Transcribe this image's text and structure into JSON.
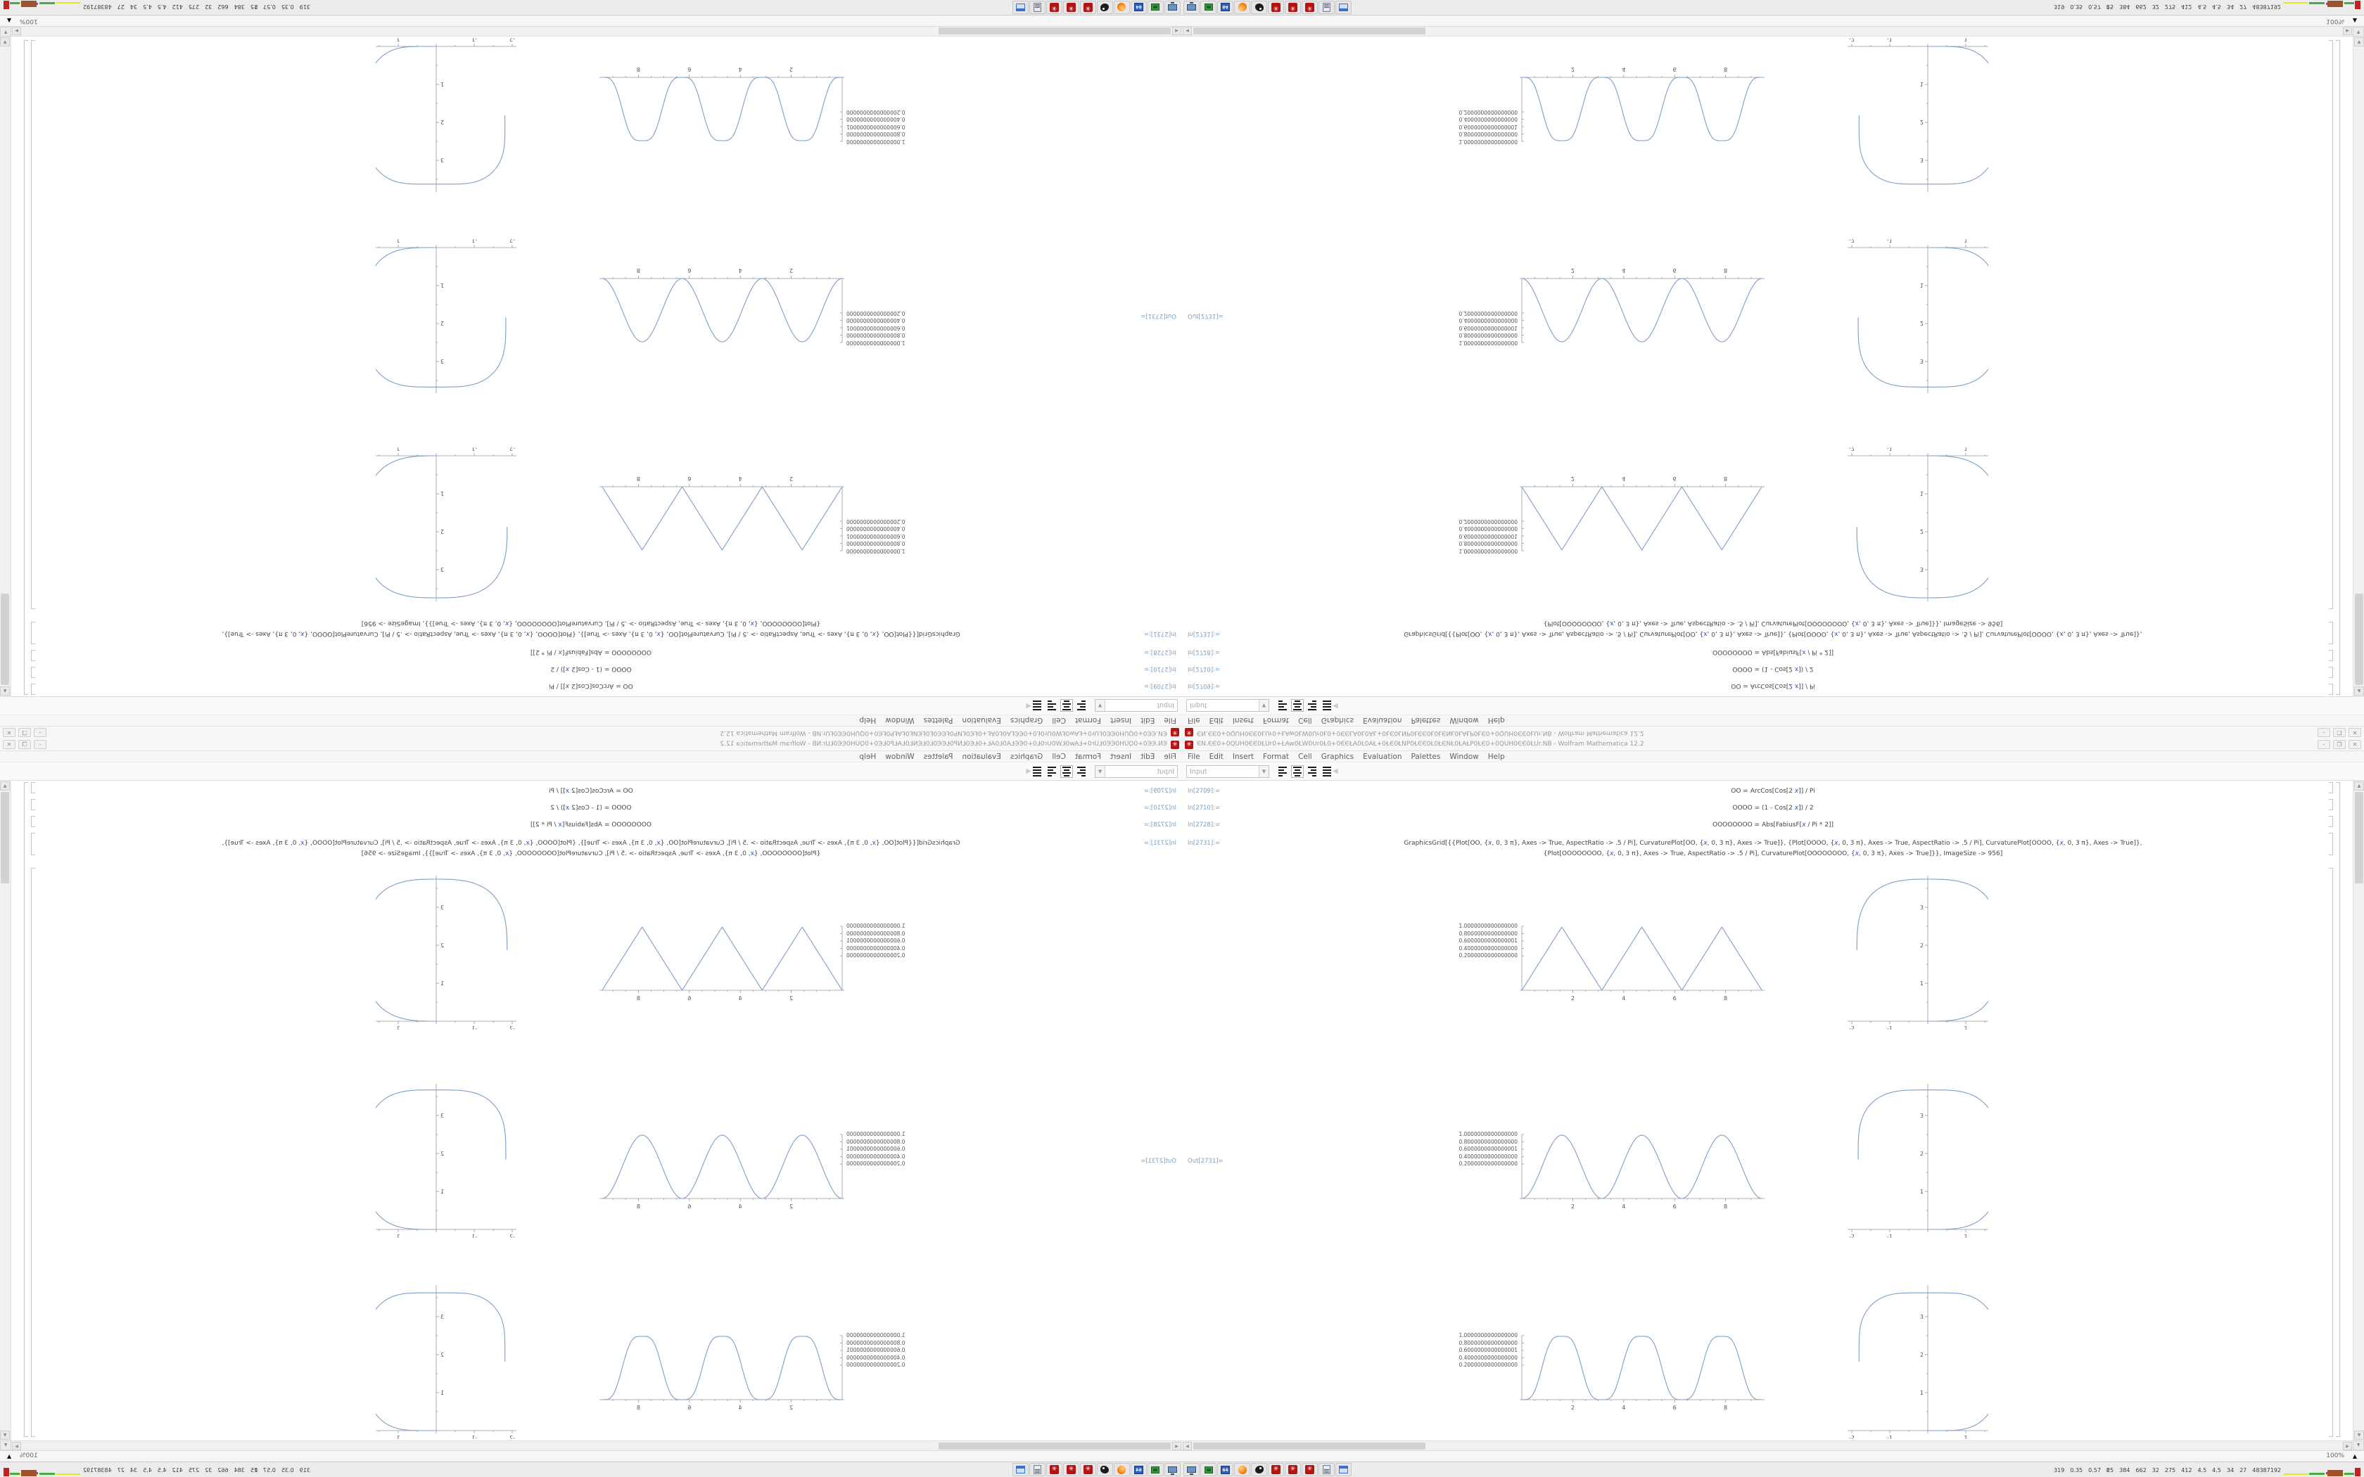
{
  "window": {
    "title": "ЄN.ЄЄ0+0QUH0ЄЄ0ŁUr0+ŁAw0ŁW0Ur0Ł0+0ЄЄŁA0Ł0AŁ+0ŁЄ0ŁNP0ŁЄЄ0Ł0ŁЄNŁ0ŁAŁP0ŁЄ0+0QUH0ЄЄ0ŁUr.NB - Wolfram Mathematica 12.2",
    "app_icon": "mathematica-spikey",
    "controls": {
      "minimize": "–",
      "restore": "❐",
      "close": "✕"
    },
    "menu": [
      "File",
      "Edit",
      "Insert",
      "Format",
      "Cell",
      "Graphics",
      "Evaluation",
      "Palettes",
      "Window",
      "Help"
    ],
    "toolbar": {
      "style_dropdown_value": "Input",
      "dropdown_arrow": "▼",
      "align_buttons": [
        "align-left",
        "align-center",
        "align-right",
        "justify-full"
      ],
      "selected_align_index": 1,
      "collapse_arrow": "◀"
    },
    "cells": [
      {
        "label": "In[2709]:=",
        "code": [
          "OO = ArcCos[Cos[2 x]] / Pi"
        ]
      },
      {
        "label": "In[2710]:=",
        "code": [
          "OOOO = (1 - Cos[2 x]) / 2"
        ]
      },
      {
        "label": "In[2728]:=",
        "code": [
          "OOOOOOOO = Abs[FabiusF[x / Pi * 2]]"
        ]
      },
      {
        "label": "In[2731]:=",
        "code": [
          "GraphicsGrid[{{Plot[OO, {x, 0, 3 π}, Axes -> True, AspectRatio -> .5 / Pi], CurvaturePlot[OO, {x, 0, 3 π}, Axes -> True]}, {Plot[OOOO, {x, 0, 3 π}, Axes -> True, AspectRatio -> .5 / Pi], CurvaturePlot[OOOO, {x, 0, 3 π}, Axes -> True]},",
          "{Plot[OOOOOOOO, {x, 0, 3 π}, Axes -> True, AspectRatio -> .5 / Pi], CurvaturePlot[OOOOOOOO, {x, 0, 3 π}, Axes -> True]}}, ImageSize -> 956]"
        ]
      }
    ],
    "output_label": "Out[2731]=",
    "status": {
      "magnification": "100%",
      "magnification_popup": "▲"
    },
    "scrollbar": {
      "up": "▲",
      "down": "▼",
      "left": "◀",
      "right": "▶"
    }
  },
  "taskbar": {
    "collapse_chevron": "»",
    "apps": [
      "desktop-monitor",
      "removable-media",
      "calendar-64",
      "firefox",
      "gimp",
      "mathematica-spikey",
      "mathematica-spikey",
      "mathematica-spikey",
      "calculator",
      "window-manager"
    ],
    "stats": [
      "319",
      "0.35",
      "0.57",
      "25",
      "384",
      "662",
      "32",
      "275",
      "412",
      "4.5",
      "4.5",
      "34",
      "27",
      "48387192"
    ]
  },
  "chart_data": [
    {
      "id": "wave-triangle",
      "type": "line",
      "shape_fn": "triangle",
      "function": "ArcCos[Cos[2 x]] / Pi",
      "x_range": [
        0,
        9.4248
      ],
      "y_range": [
        0,
        1
      ],
      "x_ticks": [
        2,
        4,
        6,
        8
      ],
      "y_tick_labels": [
        "1.0000000000000000",
        "0.8000000000000000",
        "0.6000000000000001",
        "0.4000000000000000",
        "0.2000000000000000"
      ],
      "peaks_x": [
        1.5708,
        4.7124,
        7.854
      ],
      "zeros_x": [
        0,
        3.1416,
        6.2832,
        9.4248
      ],
      "color": "#7d9ec7",
      "axis_color": "#999999",
      "tick_label_color": "#555555"
    },
    {
      "id": "wave-sin-squared",
      "type": "line",
      "shape_fn": "sinsq",
      "function": "(1 - Cos[2 x]) / 2",
      "x_range": [
        0,
        9.4248
      ],
      "y_range": [
        0,
        1
      ],
      "x_ticks": [
        2,
        4,
        6,
        8
      ],
      "y_tick_labels": [
        "1.0000000000000000",
        "0.8000000000000000",
        "0.6000000000000001",
        "0.4000000000000000",
        "0.2000000000000000"
      ],
      "peaks_x": [
        1.5708,
        4.7124,
        7.854
      ],
      "zeros_x": [
        0,
        3.1416,
        6.2832,
        9.4248
      ],
      "color": "#7d9ec7",
      "axis_color": "#999999",
      "tick_label_color": "#555555"
    },
    {
      "id": "wave-fabius",
      "type": "line",
      "shape_fn": "fabius",
      "function": "Abs[FabiusF[x / Pi * 2]]",
      "x_range": [
        0,
        9.4248
      ],
      "y_range": [
        0,
        1
      ],
      "x_ticks": [
        2,
        4,
        6,
        8
      ],
      "y_tick_labels": [
        "1.0000000000000000",
        "0.8000000000000000",
        "0.6000000000000001",
        "0.4000000000000000",
        "0.2000000000000000"
      ],
      "peaks_x": [
        1.5708,
        4.7124,
        7.854
      ],
      "zeros_x": [
        0,
        3.1416,
        6.2832,
        9.4248
      ],
      "color": "#7d9ec7",
      "axis_color": "#999999",
      "tick_label_color": "#555555"
    },
    {
      "id": "curvature-plots",
      "type": "parametric-curvature",
      "description": "curve traced with curvature equal to f(s) for s in [0, 3π]; one per grid row",
      "rows": [
        "triangle",
        "sinsq",
        "fabius"
      ],
      "start_point": [
        0,
        0
      ],
      "total_turn_deg": 270,
      "x_ticks": [
        -2,
        -1,
        1
      ],
      "y_ticks": [
        1,
        2,
        3
      ],
      "x_extent": [
        -2.1,
        1.33
      ],
      "y_extent": [
        0,
        3.76
      ],
      "color": "#7d9ec7",
      "axis_color": "#999999",
      "tick_label_color": "#555555"
    }
  ],
  "layout_rows": [
    {
      "wave": "wave-triangle",
      "curvature_source": "triangle"
    },
    {
      "wave": "wave-sin-squared",
      "curvature_source": "sinsq"
    },
    {
      "wave": "wave-fabius",
      "curvature_source": "fabius"
    }
  ]
}
